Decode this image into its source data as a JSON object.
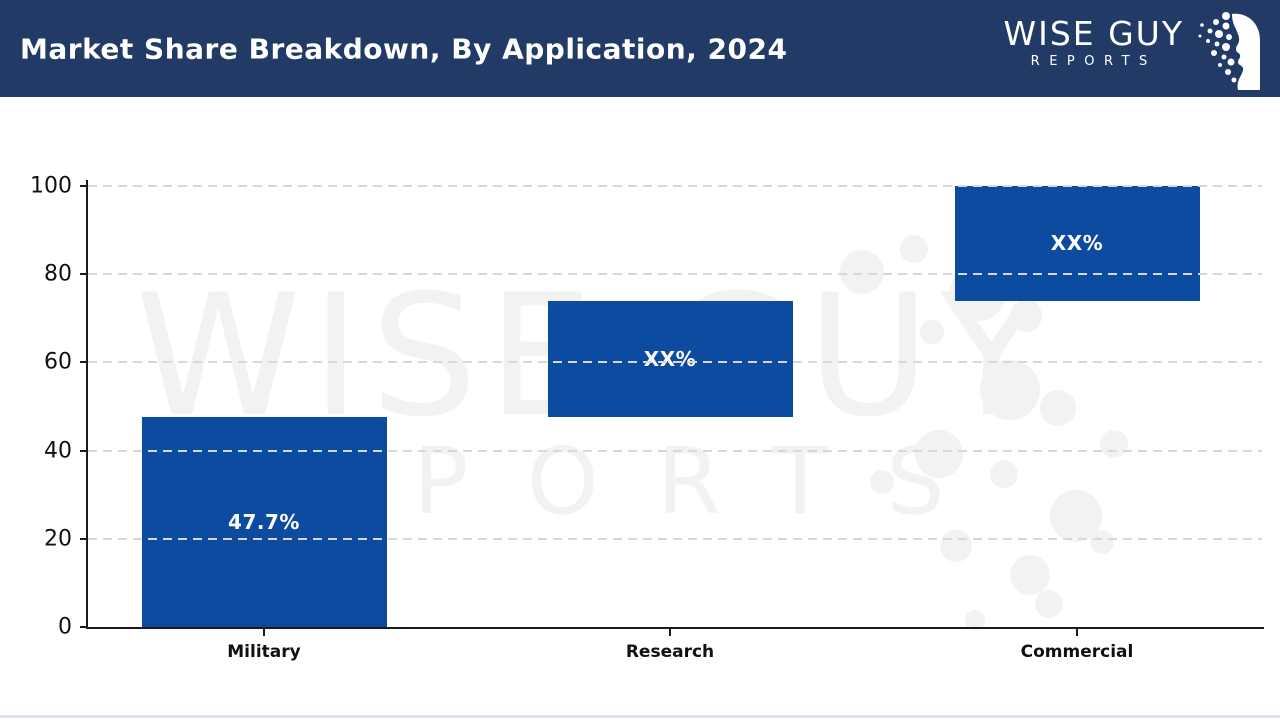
{
  "header": {
    "title": "Market Share Breakdown, By Application, 2024",
    "logo": {
      "line1": "WISE GUY",
      "line2": "REPORTS"
    }
  },
  "watermark": {
    "line1": "WISE GUY",
    "line2": "REPORTS"
  },
  "colors": {
    "header_bg": "#213a66",
    "bar": "#0d4ba0",
    "bar_label": "#ffffff",
    "gridline": "#d8d8d8",
    "axis": "#1a1a1a",
    "watermark": "#f2f2f2"
  },
  "chart_data": {
    "type": "bar",
    "subtype": "waterfall",
    "title": "Market Share Breakdown, By Application, 2024",
    "categories": [
      "Military",
      "Research",
      "Commercial"
    ],
    "segments": [
      {
        "category": "Military",
        "start": 0,
        "end": 47.7,
        "label": "47.7%"
      },
      {
        "category": "Research",
        "start": 47.7,
        "end": 74.0,
        "label": "XX%"
      },
      {
        "category": "Commercial",
        "start": 74.0,
        "end": 100.0,
        "label": "XX%"
      }
    ],
    "yticks": [
      0,
      20,
      40,
      60,
      80,
      100
    ],
    "ylim": [
      0,
      100
    ],
    "xlabel": "",
    "ylabel": "",
    "grid": true,
    "gridline_style": "dashed",
    "legend": "none"
  }
}
